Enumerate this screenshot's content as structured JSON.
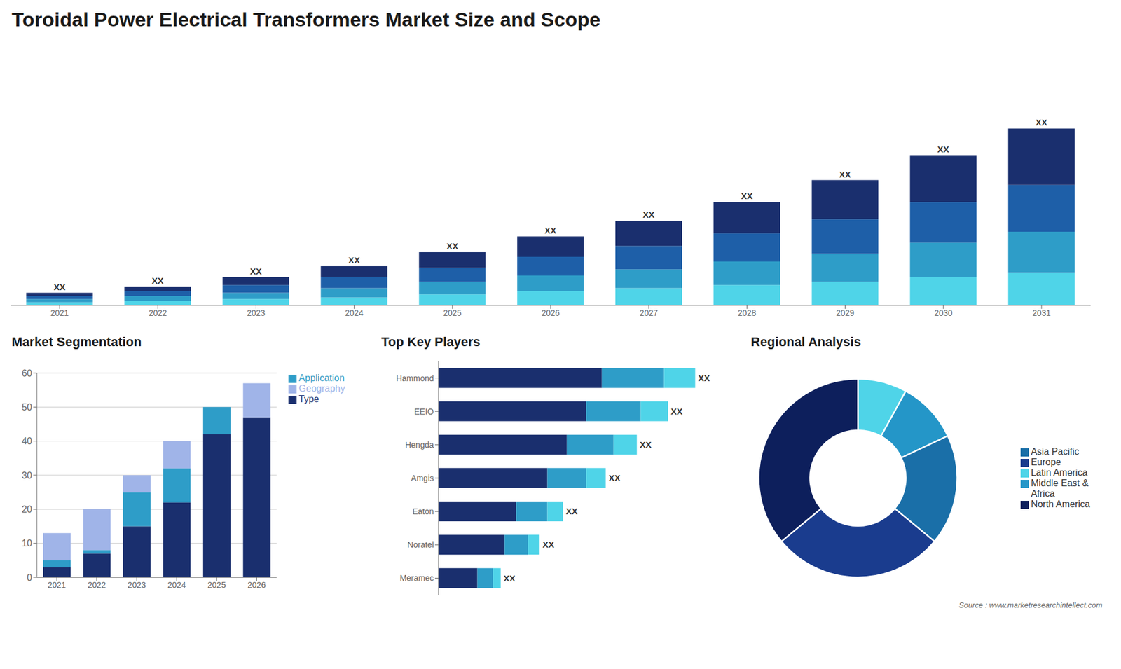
{
  "chart_data": [
    {
      "type": "bar",
      "stacked": true,
      "title": "Toroidal Power Electrical Transformers Market Size and Scope",
      "categories": [
        "2021",
        "2022",
        "2023",
        "2024",
        "2025",
        "2026",
        "2027",
        "2028",
        "2029",
        "2030",
        "2031"
      ],
      "series": [
        {
          "color": "#4fd4e8",
          "values": [
            2,
            3,
            4,
            5,
            7,
            9,
            11,
            13,
            15,
            18,
            21
          ]
        },
        {
          "color": "#2e9dc8",
          "values": [
            2,
            3,
            4,
            6,
            8,
            10,
            12,
            15,
            18,
            22,
            26
          ]
        },
        {
          "color": "#1e5fa8",
          "values": [
            2,
            3,
            5,
            7,
            9,
            12,
            15,
            18,
            22,
            26,
            30
          ]
        },
        {
          "color": "#1a2f6e",
          "values": [
            2,
            3,
            5,
            7,
            10,
            13,
            16,
            20,
            25,
            30,
            36
          ]
        }
      ],
      "ylim": [
        0,
        160.46
      ],
      "tick_labels": "x",
      "grid": false,
      "annotations": [
        {
          "category": "2021",
          "text": "XX"
        },
        {
          "category": "2022",
          "text": "XX"
        },
        {
          "category": "2023",
          "text": "XX"
        },
        {
          "category": "2024",
          "text": "XX"
        },
        {
          "category": "2025",
          "text": "XX"
        },
        {
          "category": "2026",
          "text": "XX"
        },
        {
          "category": "2027",
          "text": "XX"
        },
        {
          "category": "2028",
          "text": "XX"
        },
        {
          "category": "2029",
          "text": "XX"
        },
        {
          "category": "2030",
          "text": "XX"
        },
        {
          "category": "2031",
          "text": "XX"
        },
        {
          "text": "Source : www.marketresearchintellect.com"
        }
      ]
    },
    {
      "type": "bar",
      "stacked": true,
      "title": "Market Segmentation",
      "categories": [
        "2021",
        "2022",
        "2023",
        "2024",
        "2025",
        "2026"
      ],
      "series": [
        {
          "name": "Type",
          "color": "#1a2f6e",
          "values": [
            3,
            7,
            15,
            22,
            42,
            47
          ]
        },
        {
          "name": "Application",
          "color": "#2e9dc8",
          "values": [
            2,
            1,
            10,
            10,
            8,
            0
          ]
        },
        {
          "name": "Geography",
          "color": "#a0b4e8",
          "values": [
            8,
            12,
            5,
            8,
            0,
            10
          ]
        }
      ],
      "ylim": [
        0,
        60
      ],
      "yticks": [
        0,
        10,
        20,
        30,
        40,
        50,
        60
      ],
      "grid": true,
      "legend": "right"
    },
    {
      "type": "bar",
      "orientation": "horizontal",
      "stacked": true,
      "title": "Top Key Players",
      "categories": [
        "Hammond",
        "EEIO",
        "Hengda",
        "Amgis",
        "Eaton",
        "Noratel",
        "Meramec"
      ],
      "series": [
        {
          "color": "#1a2f6e",
          "values": [
            0.42,
            0.38,
            0.33,
            0.28,
            0.2,
            0.17,
            0.1
          ]
        },
        {
          "color": "#2e9dc8",
          "values": [
            0.16,
            0.14,
            0.12,
            0.1,
            0.08,
            0.06,
            0.04
          ]
        },
        {
          "color": "#4fd4e8",
          "values": [
            0.08,
            0.07,
            0.06,
            0.05,
            0.04,
            0.03,
            0.02
          ]
        }
      ],
      "xlim": [
        0,
        0.68
      ],
      "tick_labels": "y",
      "grid": false,
      "annotations": [
        {
          "category": "Hammond",
          "text": "XX"
        },
        {
          "category": "EEIO",
          "text": "XX"
        },
        {
          "category": "Hengda",
          "text": "XX"
        },
        {
          "category": "Amgis",
          "text": "XX"
        },
        {
          "category": "Eaton",
          "text": "XX"
        },
        {
          "category": "Noratel",
          "text": "XX"
        },
        {
          "category": "Meramec",
          "text": "XX"
        }
      ]
    },
    {
      "type": "pie",
      "title": "Regional Analysis",
      "categories": [
        "Latin America",
        "Middle East &\nAfrica",
        "Asia Pacific",
        "Europe",
        "North America"
      ],
      "values": [
        8,
        10,
        18,
        28,
        36
      ],
      "colors": [
        "#4fd4e8",
        "#2496c8",
        "#1a6fa8",
        "#1a3c8e",
        "#0d1f5c"
      ],
      "legend": "right"
    }
  ]
}
